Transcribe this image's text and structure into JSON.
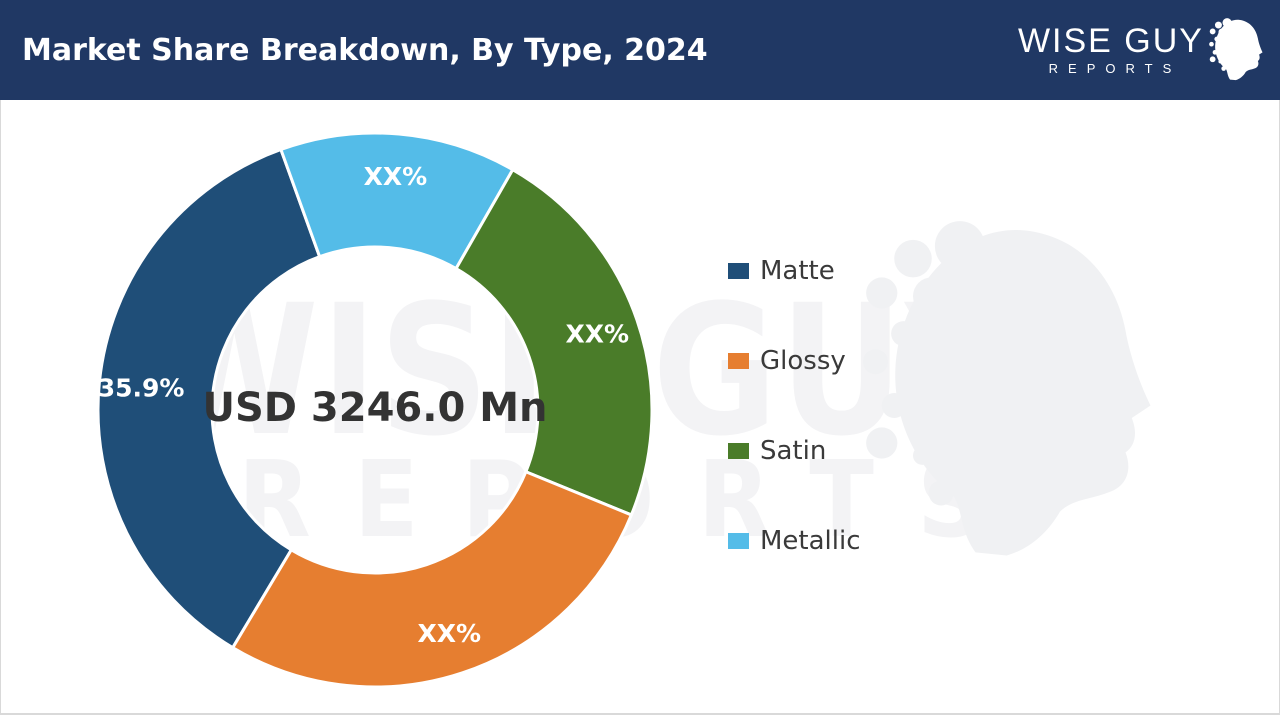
{
  "header": {
    "title": "Market Share Breakdown, By Type, 2024",
    "bg_color": "#203864",
    "logo": {
      "line1": "WISE GUY",
      "line2": "REPORTS"
    }
  },
  "watermark": {
    "line1": "WISE GUY",
    "line2": "REPORTS"
  },
  "chart_data": {
    "type": "donut",
    "title": "Market Share Breakdown, By Type, 2024",
    "center_label": "USD 3246.0 Mn",
    "start_angle_deg": 210.9,
    "direction": "clockwise",
    "segments": [
      {
        "name": "Matte",
        "value_pct": 35.9,
        "display_label": "35.9%",
        "color": "#1f4e78"
      },
      {
        "name": "Metallic",
        "value_pct": 13.8,
        "display_label": "XX%",
        "color": "#54bce8"
      },
      {
        "name": "Satin",
        "value_pct": 22.9,
        "display_label": "XX%",
        "color": "#4a7c29"
      },
      {
        "name": "Glossy",
        "value_pct": 27.4,
        "display_label": "XX%",
        "color": "#e67e30"
      }
    ],
    "legend_position": "right"
  },
  "legend": {
    "items": [
      {
        "label": "Matte",
        "color": "#1f4e78"
      },
      {
        "label": "Glossy",
        "color": "#e67e30"
      },
      {
        "label": "Satin",
        "color": "#4a7c29"
      },
      {
        "label": "Metallic",
        "color": "#54bce8"
      }
    ]
  }
}
